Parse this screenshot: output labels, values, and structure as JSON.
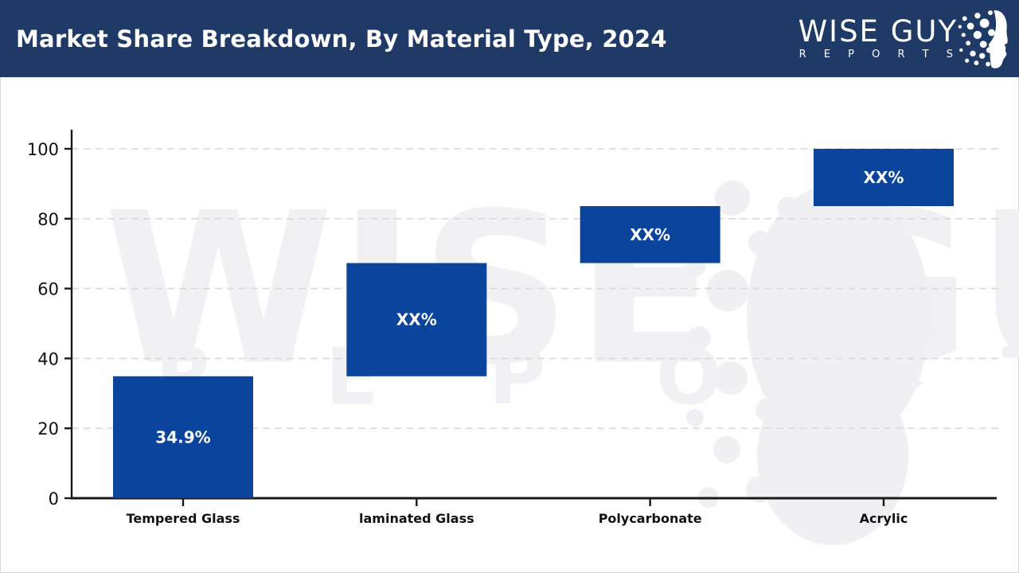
{
  "header": {
    "title": "Market Share Breakdown, By Material Type, 2024",
    "logo": {
      "wordmark": "WISE GUY",
      "subtext": "R E P O R T S"
    }
  },
  "watermark": {
    "line1": "WISE GUY",
    "line2": "R E P O R T S"
  },
  "chart_data": {
    "type": "bar",
    "subtype": "waterfall-stacked-share",
    "title": "Market Share Breakdown, By Material Type, 2024",
    "categories": [
      "Tempered Glass",
      "laminated Glass",
      "Polycarbonate",
      "Acrylic"
    ],
    "bars": [
      {
        "category": "Tempered Glass",
        "base": 0,
        "top": 34.9,
        "label": "34.9%"
      },
      {
        "category": "laminated Glass",
        "base": 34.9,
        "top": 67.3,
        "label": "XX%"
      },
      {
        "category": "Polycarbonate",
        "base": 67.3,
        "top": 83.6,
        "label": "XX%"
      },
      {
        "category": "Acrylic",
        "base": 83.6,
        "top": 100,
        "label": "XX%"
      }
    ],
    "y_ticks": [
      0,
      20,
      40,
      60,
      80,
      100
    ],
    "ylim": [
      0,
      105
    ],
    "xlabel": "",
    "ylabel": "",
    "grid": "horizontal-dashed",
    "legend": "none",
    "bar_color": "#0a449c",
    "bar_label_color": "#ffffff",
    "axis_color": "#1a1a1a",
    "gridline_color": "#d9d9d9"
  },
  "colors": {
    "header_bg": "#1f3a66",
    "bar_blue": "#0a449c",
    "watermark": "#f0f0f3",
    "page_border": "#d6d6d6"
  }
}
